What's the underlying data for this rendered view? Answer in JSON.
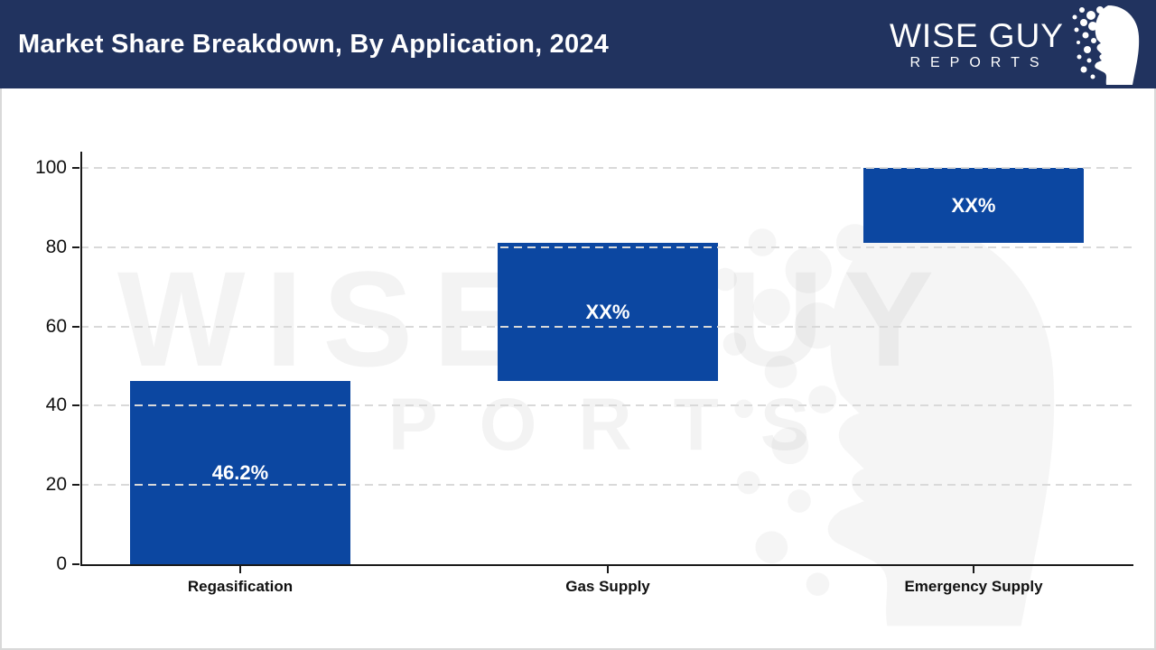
{
  "header": {
    "title": "Market Share Breakdown, By Application, 2024",
    "logo": {
      "name": "Wise Guy Reports",
      "line1": "WISE GUY",
      "line2": "REPORTS"
    }
  },
  "watermark": {
    "line1": "WISE GUY",
    "line2": "REPORTS"
  },
  "colors": {
    "header_bg": "#21335f",
    "bar": "#0c47a1",
    "grid": "#d9d9d9",
    "axis": "#1a1a1a",
    "title_text": "#ffffff",
    "bar_label_text": "#ffffff"
  },
  "chart_data": {
    "type": "bar",
    "subtype": "floating-cumulative-share",
    "title": "Market Share Breakdown, By Application, 2024",
    "categories": [
      "Regasification",
      "Gas Supply",
      "Emergency Supply"
    ],
    "bars": [
      {
        "category": "Regasification",
        "start": 0,
        "end": 46.2,
        "label": "46.2%"
      },
      {
        "category": "Gas Supply",
        "start": 46.2,
        "end": 81,
        "label": "XX%"
      },
      {
        "category": "Emergency Supply",
        "start": 81,
        "end": 100,
        "label": "XX%"
      }
    ],
    "ylim": [
      0,
      100
    ],
    "yticks": [
      0,
      20,
      40,
      60,
      80,
      100
    ],
    "xlabel": "",
    "ylabel": "",
    "grid": "horizontal-dashed",
    "legend": null
  }
}
